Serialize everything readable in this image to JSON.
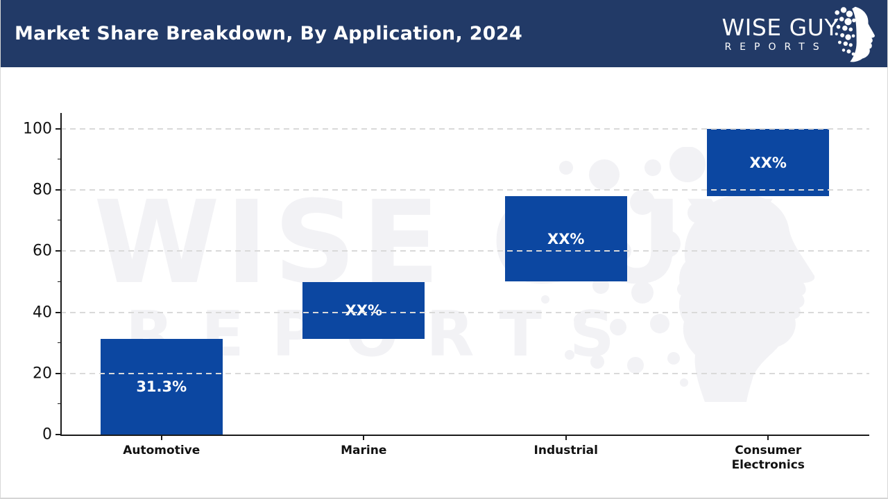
{
  "header": {
    "title": "Market Share Breakdown, By Application, 2024",
    "logo": {
      "line1": "WISE GUY",
      "line2": "REPORTS",
      "head_icon": "dotted-head-profile"
    }
  },
  "watermark": {
    "line1": "WISE GUY",
    "line2": "REPORTS"
  },
  "chart_data": {
    "type": "bar",
    "subtype": "floating-waterfall",
    "title": "Market Share Breakdown, By Application, 2024",
    "categories": [
      "Automotive",
      "Marine",
      "Industrial",
      "Consumer Electronics"
    ],
    "segments": [
      {
        "category": "Automotive",
        "start": 0,
        "end": 31.3,
        "label": "31.3%"
      },
      {
        "category": "Marine",
        "start": 31.3,
        "end": 50,
        "label": "XX%"
      },
      {
        "category": "Industrial",
        "start": 50,
        "end": 78,
        "label": "XX%"
      },
      {
        "category": "Consumer Electronics",
        "start": 78,
        "end": 100,
        "label": "XX%"
      }
    ],
    "xlabel": "",
    "ylabel": "",
    "ylim": [
      0,
      100
    ],
    "yticks": [
      0,
      20,
      40,
      60,
      80,
      100
    ],
    "minor_yticks": [
      10,
      30,
      50,
      70,
      90
    ],
    "grid": "horizontal-dashed",
    "legend": "none",
    "bar_color": "#0c47a1",
    "label_color": "#ffffff"
  },
  "colors": {
    "header_bg": "#223a67",
    "bar": "#0c47a1",
    "axis": "#1a1a1a",
    "grid": "#d9d9d9",
    "watermark": "#f2f2f5",
    "page_border": "#d5d5d5"
  }
}
